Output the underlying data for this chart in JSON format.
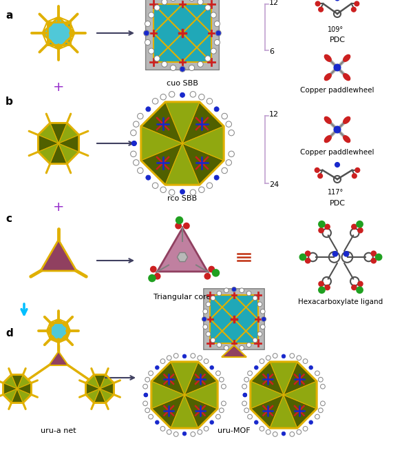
{
  "background_color": "#ffffff",
  "label_a": "a",
  "label_b": "b",
  "label_c": "c",
  "label_d": "d",
  "plus_color": "#9932CC",
  "arrow_color": "#404060",
  "bracket_color": "#c0a0d0",
  "cuo_sbb_label": "cuo SBB",
  "rco_sbb_label": "rco SBB",
  "triangular_core_label": "Triangular core",
  "hexacarboxylate_label": "Hexacarboxylate ligand",
  "uru_a_net_label": "uru-a net",
  "uru_mof_label": "uru-MOF",
  "pdc_label": "PDC",
  "copper_pw_label": "Copper paddlewheel",
  "angle_109": "109°",
  "angle_117": "117°",
  "num_12": "12",
  "num_6": "6",
  "num_12b": "12",
  "num_24": "24",
  "yellow": "#E0B000",
  "teal": "#20A8B8",
  "teal_light": "#50C8D8",
  "ygreen": "#90A810",
  "dkgreen": "#506000",
  "pink": "#C080A0",
  "dpink": "#904060",
  "red": "#CC2020",
  "blue": "#1828CC",
  "gray": "#808080",
  "lgray": "#B8B8B8",
  "dgray": "#505050",
  "green": "#20A020",
  "cyan_arr": "#00BFFF",
  "white": "#ffffff"
}
